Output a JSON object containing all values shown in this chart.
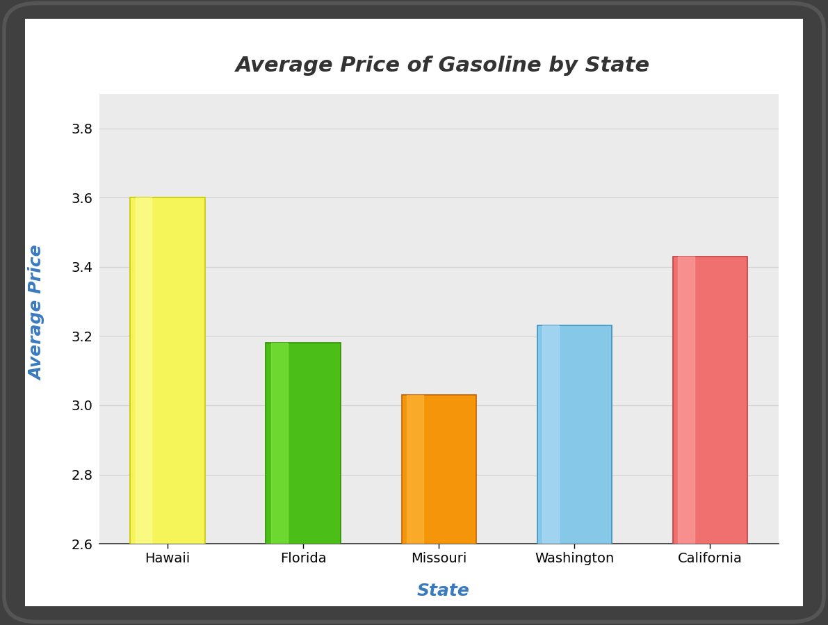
{
  "title": "Average Price of Gasoline by State",
  "xlabel": "State",
  "ylabel": "Average Price",
  "categories": [
    "Hawaii",
    "Florida",
    "Missouri",
    "Washington",
    "California"
  ],
  "values": [
    3.6,
    3.18,
    3.03,
    3.23,
    3.43
  ],
  "bar_colors": [
    "#f5f55a",
    "#4cbe18",
    "#f5960a",
    "#85c8e8",
    "#f07070"
  ],
  "bar_edge_colors": [
    "#c8c800",
    "#2e9000",
    "#c86000",
    "#4090c0",
    "#c04040"
  ],
  "highlight_colors": [
    "#ffffa0",
    "#88ee44",
    "#ffbb44",
    "#b8ddf8",
    "#ffaaaa"
  ],
  "ylim": [
    2.6,
    3.9
  ],
  "yticks": [
    2.6,
    2.8,
    3.0,
    3.2,
    3.4,
    3.6,
    3.8
  ],
  "axis_label_color": "#3a7abf",
  "title_fontsize": 22,
  "axis_label_fontsize": 18,
  "tick_fontsize": 14,
  "plot_background_color": "#ebebeb",
  "figure_background": "#ffffff",
  "frame_color": "#404040",
  "grid_color": "#d0d0d0"
}
